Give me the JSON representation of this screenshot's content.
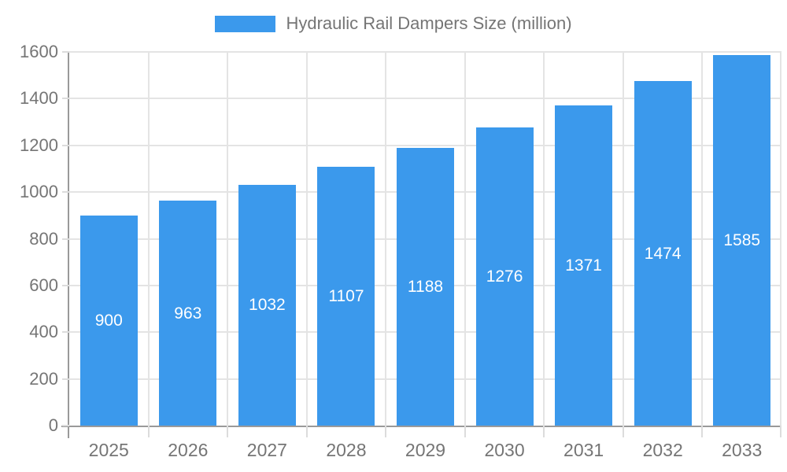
{
  "legend": {
    "label": "Hydraulic Rail Dampers Size (million)"
  },
  "chart_data": {
    "type": "bar",
    "title": "Hydraulic Rail Dampers Size (million)",
    "categories": [
      "2025",
      "2026",
      "2027",
      "2028",
      "2029",
      "2030",
      "2031",
      "2032",
      "2033"
    ],
    "values": [
      900,
      963,
      1032,
      1107,
      1188,
      1276,
      1371,
      1474,
      1585
    ],
    "xlabel": "",
    "ylabel": "",
    "ylim": [
      0,
      1600
    ],
    "yticks": [
      0,
      200,
      400,
      600,
      800,
      1000,
      1200,
      1400,
      1600
    ],
    "grid": true,
    "legend_position": "top",
    "bar_value_labels": "inside-center",
    "colors": {
      "bar": "#3b99ec",
      "grid": "#e4e4e4",
      "axis": "#9a9a9a",
      "text": "#757575",
      "bar_label": "#ffffff"
    }
  }
}
